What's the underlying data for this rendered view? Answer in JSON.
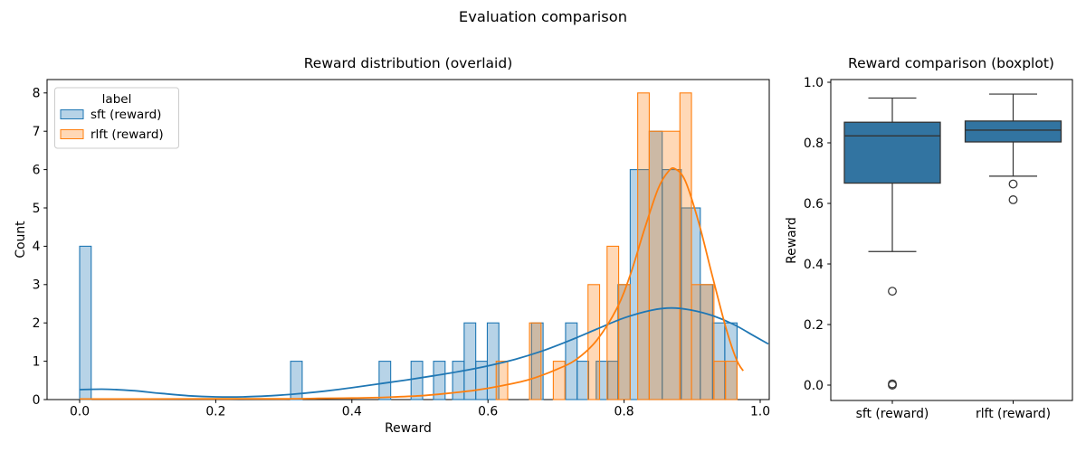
{
  "figure": {
    "title": "Evaluation comparison"
  },
  "hist_panel": {
    "title": "Reward distribution (overlaid)",
    "xlabel": "Reward",
    "ylabel": "Count",
    "legend": {
      "title": "label",
      "items": [
        {
          "label": "sft (reward)"
        },
        {
          "label": "rlft (reward)"
        }
      ]
    }
  },
  "box_panel": {
    "title": "Reward comparison (boxplot)",
    "ylabel": "Reward",
    "categories": [
      "sft (reward)",
      "rlft (reward)"
    ]
  },
  "colors": {
    "blue": "#1f77b4",
    "orange": "#ff7f0e",
    "blue_fill": "rgba(31,119,180,0.32)",
    "orange_fill": "rgba(255,127,14,0.30)",
    "box_fill": "#3274a1",
    "box_line": "#333333",
    "spine": "#000000",
    "legend_border": "#cccccc"
  },
  "chart_data": [
    {
      "type": "histogram",
      "title": "Reward distribution (overlaid)",
      "xlabel": "Reward",
      "ylabel": "Count",
      "xlim": [
        -0.048,
        1.014
      ],
      "ylim": [
        0,
        8.35
      ],
      "x_ticks": [
        0.0,
        0.2,
        0.4,
        0.6,
        0.8,
        1.0
      ],
      "y_ticks": [
        0,
        1,
        2,
        3,
        4,
        5,
        6,
        7,
        8
      ],
      "legend_position": "upper left",
      "series": [
        {
          "name": "sft (reward)",
          "key": "sft",
          "bars": [
            [
              0.0,
              0.017,
              4
            ],
            [
              0.31,
              0.327,
              1
            ],
            [
              0.44,
              0.457,
              1
            ],
            [
              0.487,
              0.504,
              1
            ],
            [
              0.52,
              0.537,
              1
            ],
            [
              0.548,
              0.565,
              1
            ],
            [
              0.565,
              0.582,
              2
            ],
            [
              0.582,
              0.599,
              1
            ],
            [
              0.599,
              0.616,
              2
            ],
            [
              0.664,
              0.681,
              2
            ],
            [
              0.714,
              0.731,
              2
            ],
            [
              0.731,
              0.748,
              1
            ],
            [
              0.759,
              0.776,
              1
            ],
            [
              0.776,
              0.791,
              1
            ],
            [
              0.791,
              0.809,
              3
            ],
            [
              0.809,
              0.837,
              6
            ],
            [
              0.837,
              0.856,
              7
            ],
            [
              0.856,
              0.884,
              6
            ],
            [
              0.884,
              0.912,
              5
            ],
            [
              0.912,
              0.93,
              3
            ],
            [
              0.93,
              0.948,
              2
            ],
            [
              0.948,
              0.966,
              2
            ]
          ],
          "kde": [
            [
              0.0,
              0.26
            ],
            [
              0.04,
              0.27
            ],
            [
              0.08,
              0.23
            ],
            [
              0.12,
              0.16
            ],
            [
              0.16,
              0.1
            ],
            [
              0.2,
              0.07
            ],
            [
              0.24,
              0.07
            ],
            [
              0.28,
              0.1
            ],
            [
              0.32,
              0.15
            ],
            [
              0.36,
              0.22
            ],
            [
              0.4,
              0.31
            ],
            [
              0.44,
              0.41
            ],
            [
              0.48,
              0.51
            ],
            [
              0.52,
              0.62
            ],
            [
              0.56,
              0.74
            ],
            [
              0.6,
              0.88
            ],
            [
              0.64,
              1.05
            ],
            [
              0.68,
              1.27
            ],
            [
              0.72,
              1.54
            ],
            [
              0.76,
              1.84
            ],
            [
              0.8,
              2.13
            ],
            [
              0.84,
              2.33
            ],
            [
              0.87,
              2.39
            ],
            [
              0.9,
              2.33
            ],
            [
              0.93,
              2.19
            ],
            [
              0.96,
              1.97
            ],
            [
              0.99,
              1.67
            ],
            [
              1.012,
              1.45
            ]
          ]
        },
        {
          "name": "rlft (reward)",
          "key": "rlft",
          "bars": [
            [
              0.612,
              0.629,
              1
            ],
            [
              0.661,
              0.678,
              2
            ],
            [
              0.696,
              0.713,
              1
            ],
            [
              0.747,
              0.764,
              3
            ],
            [
              0.775,
              0.792,
              4
            ],
            [
              0.792,
              0.809,
              3
            ],
            [
              0.82,
              0.837,
              8
            ],
            [
              0.837,
              0.882,
              7
            ],
            [
              0.882,
              0.899,
              8
            ],
            [
              0.899,
              0.932,
              3
            ],
            [
              0.932,
              0.949,
              1
            ],
            [
              0.949,
              0.966,
              1
            ]
          ],
          "kde": [
            [
              0.0,
              0.015
            ],
            [
              0.1,
              0.015
            ],
            [
              0.2,
              0.02
            ],
            [
              0.3,
              0.02
            ],
            [
              0.35,
              0.03
            ],
            [
              0.4,
              0.04
            ],
            [
              0.45,
              0.06
            ],
            [
              0.5,
              0.1
            ],
            [
              0.54,
              0.16
            ],
            [
              0.58,
              0.24
            ],
            [
              0.62,
              0.36
            ],
            [
              0.66,
              0.52
            ],
            [
              0.7,
              0.78
            ],
            [
              0.73,
              1.05
            ],
            [
              0.76,
              1.55
            ],
            [
              0.79,
              2.4
            ],
            [
              0.81,
              3.3
            ],
            [
              0.83,
              4.45
            ],
            [
              0.85,
              5.5
            ],
            [
              0.865,
              5.95
            ],
            [
              0.875,
              6.02
            ],
            [
              0.89,
              5.7
            ],
            [
              0.91,
              4.6
            ],
            [
              0.93,
              3.2
            ],
            [
              0.95,
              1.85
            ],
            [
              0.965,
              1.05
            ],
            [
              0.975,
              0.75
            ]
          ]
        }
      ]
    },
    {
      "type": "boxplot",
      "title": "Reward comparison (boxplot)",
      "ylabel": "Reward",
      "ylim": [
        -0.051,
        1.009
      ],
      "y_ticks": [
        0.0,
        0.2,
        0.4,
        0.6,
        0.8,
        1.0
      ],
      "categories": [
        "sft (reward)",
        "rlft (reward)"
      ],
      "boxes": [
        {
          "label": "sft (reward)",
          "whisker_low": 0.441,
          "q1": 0.667,
          "median": 0.823,
          "q3": 0.868,
          "whisker_high": 0.948,
          "outliers": [
            0.31,
            0.004,
            0.0
          ]
        },
        {
          "label": "rlft (reward)",
          "whisker_low": 0.69,
          "q1": 0.803,
          "median": 0.842,
          "q3": 0.872,
          "whisker_high": 0.961,
          "outliers": [
            0.664,
            0.612
          ]
        }
      ]
    }
  ]
}
